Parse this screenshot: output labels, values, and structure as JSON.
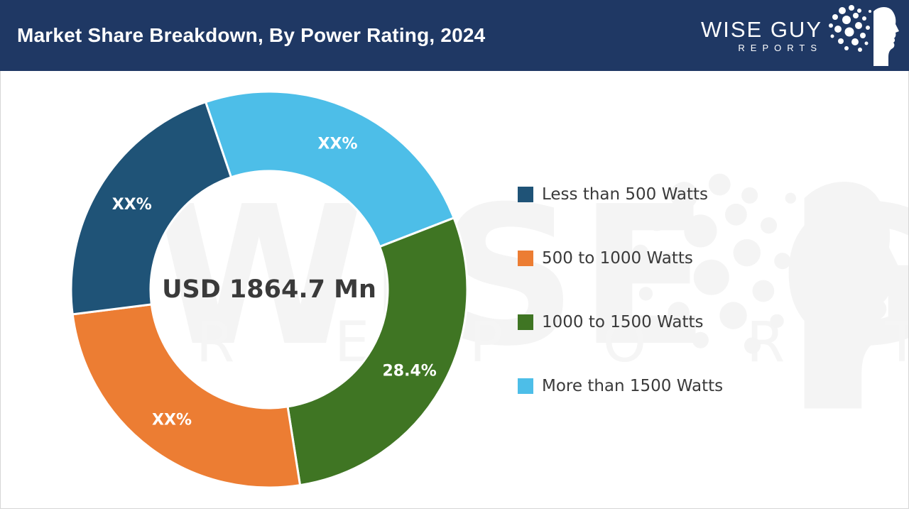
{
  "header": {
    "title": "Market Share Breakdown, By Power Rating, 2024",
    "background_color": "#1F3864",
    "logo": {
      "line1": "WISE GUY",
      "line2": "REPORTS"
    }
  },
  "watermark": {
    "line1": "WISE GU",
    "line2": "R E P O R T S"
  },
  "chart_data": {
    "type": "pie",
    "subtype": "donut",
    "title": "Market Share Breakdown, By Power Rating, 2024",
    "center_label": "USD 1864.7 Mn",
    "units": "percent of market share",
    "legend_position": "right",
    "start_angle_deg_from_top": -18.7,
    "clockwise": true,
    "inner_radius_ratio": 0.6,
    "slices": [
      {
        "label": "Less than 500 Watts",
        "value": 21.8,
        "display_label": "XX%",
        "value_shown": false,
        "color": "#1F5377"
      },
      {
        "label": "500 to 1000 Watts",
        "value": 25.5,
        "display_label": "XX%",
        "value_shown": false,
        "color": "#EC7D33"
      },
      {
        "label": "1000 to 1500 Watts",
        "value": 28.4,
        "display_label": "28.4%",
        "value_shown": true,
        "color": "#3F7523"
      },
      {
        "label": "More than 1500 Watts",
        "value": 24.3,
        "display_label": "XX%",
        "value_shown": false,
        "color": "#4DBEE8"
      }
    ],
    "draw_order": [
      "More than 1500 Watts",
      "1000 to 1500 Watts",
      "500 to 1000 Watts",
      "Less than 500 Watts"
    ]
  }
}
